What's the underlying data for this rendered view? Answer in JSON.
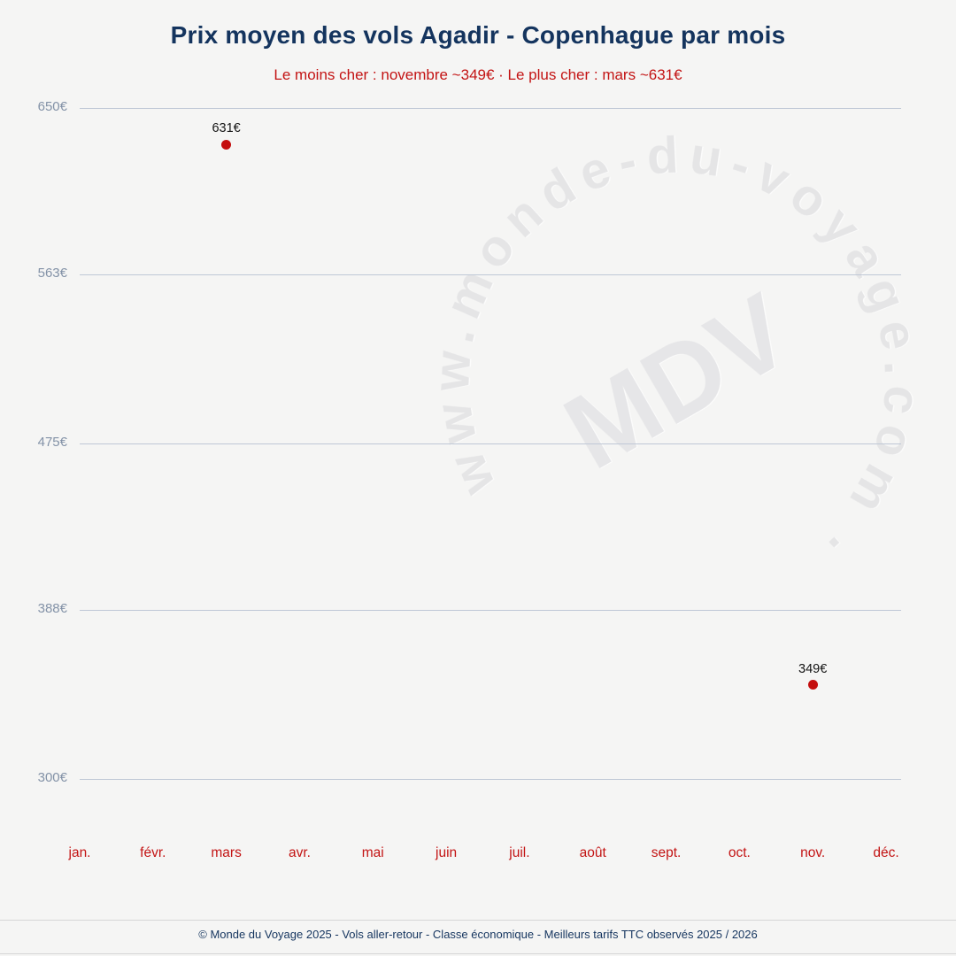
{
  "chart_data": {
    "type": "scatter",
    "title": "Prix moyen des vols Agadir - Copenhague par mois",
    "subtitle": "Le moins cher : novembre ~349€ · Le plus cher : mars ~631€",
    "categories": [
      "jan.",
      "févr.",
      "mars",
      "avr.",
      "mai",
      "juin",
      "juil.",
      "août",
      "sept.",
      "oct.",
      "nov.",
      "déc."
    ],
    "points": [
      {
        "category": "mars",
        "value": 631,
        "label": "631€"
      },
      {
        "category": "nov.",
        "value": 349,
        "label": "349€"
      }
    ],
    "yticks": [
      {
        "value": 650,
        "label": "650€"
      },
      {
        "value": 563,
        "label": "563€"
      },
      {
        "value": 475,
        "label": "475€"
      },
      {
        "value": 388,
        "label": "388€"
      },
      {
        "value": 300,
        "label": "300€"
      }
    ],
    "ylim": [
      300,
      650
    ],
    "xlabel": "",
    "ylabel": "",
    "grid": true,
    "legend": false
  },
  "watermark": {
    "ring_text": "www.monde-du-voyage.com ·",
    "center_text": "MDV"
  },
  "footer": {
    "text": "© Monde du Voyage 2025 - Vols aller-retour - Classe économique - Meilleurs tarifs TTC observés 2025 / 2026"
  },
  "colors": {
    "title": "#14345e",
    "accent_red": "#c31414",
    "point_red": "#c40e0e",
    "tick_label": "#8392a7",
    "gridline": "#bfc8d6",
    "footer_text": "#15355f",
    "watermark": "#e2e2e4",
    "background": "#f5f5f4"
  }
}
